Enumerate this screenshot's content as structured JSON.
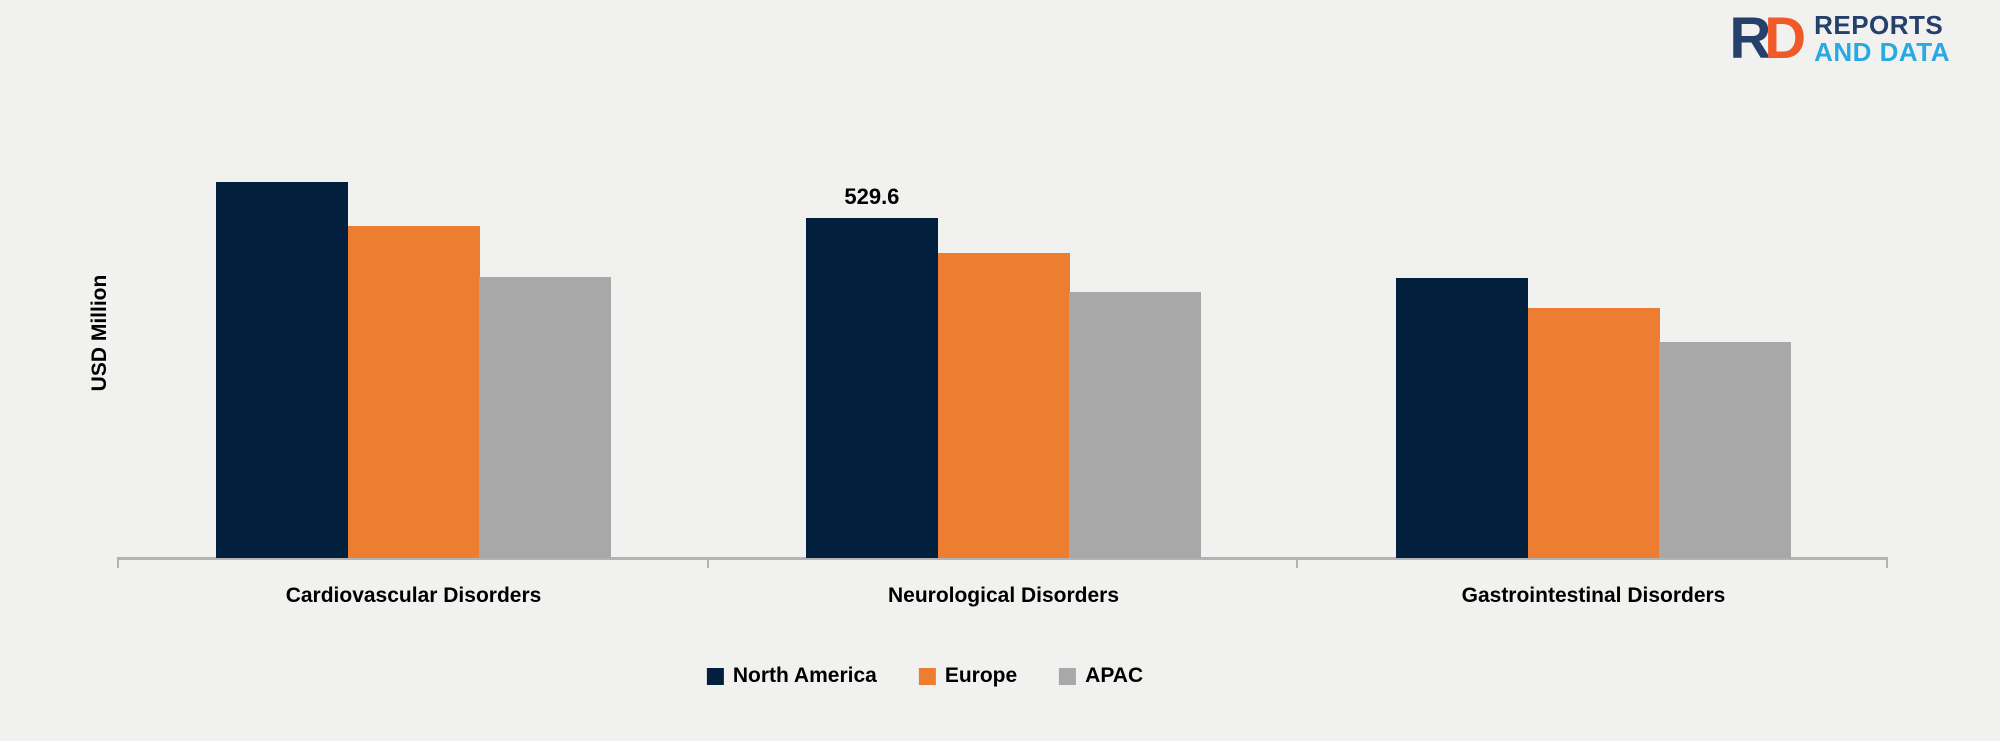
{
  "logo": {
    "mark_r": "R",
    "mark_d": "D",
    "line1": "REPORTS",
    "line2": "AND DATA",
    "colors": {
      "navy": "#24406b",
      "orange": "#f05a28",
      "light_blue": "#29a9e1"
    }
  },
  "chart_data": {
    "type": "bar",
    "title": "",
    "xlabel": "",
    "ylabel": "USD Million",
    "categories": [
      "Cardiovascular Disorders",
      "Neurological Disorders",
      "Gastrointestinal Disorders"
    ],
    "series": [
      {
        "name": "North America",
        "color": "#02203e",
        "values": [
          586,
          529.6,
          436
        ]
      },
      {
        "name": "Europe",
        "color": "#ed7d31",
        "values": [
          517,
          475,
          390
        ]
      },
      {
        "name": "APAC",
        "color": "#a8a8a8",
        "values": [
          438,
          415,
          336
        ]
      }
    ],
    "data_labels": [
      {
        "series": "North America",
        "category": "Neurological Disorders",
        "text": "529.6"
      }
    ],
    "axis": {
      "y_axis_visible": false,
      "gridlines": false,
      "baseline_color": "#b3b3b3"
    },
    "legend_position": "bottom-center",
    "background_color": "#f1f1f0"
  }
}
